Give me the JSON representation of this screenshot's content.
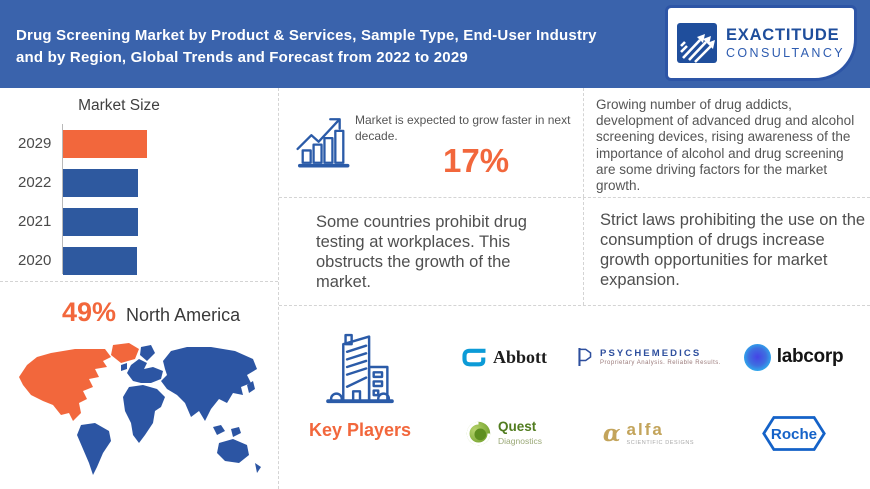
{
  "header": {
    "title_line1": "Drug Screening Market by Product & Services, Sample Type, End-User Industry",
    "title_line2": "and by Region, Global Trends and Forecast from 2022 to 2029",
    "logo": {
      "line1": "EXACTITUDE",
      "line2": "CONSULTANCY"
    }
  },
  "chart_data": {
    "type": "bar",
    "orientation": "horizontal",
    "title": "Market Size",
    "categories": [
      "2029",
      "2022",
      "2021",
      "2020"
    ],
    "values": [
      100,
      89,
      89,
      88
    ],
    "values_unit": "relative bar length (no numeric axis shown)",
    "bar_colors": [
      "#F2673C",
      "#2E599F",
      "#2E599F",
      "#2E599F"
    ],
    "highlight_category": "2029",
    "legend": "none",
    "grid": "off"
  },
  "region_share": {
    "percent": "49%",
    "label": "North America"
  },
  "growth": {
    "text": "Market is expected to grow faster in next decade.",
    "percent": "17%"
  },
  "sections": {
    "driver": "Growing number of drug addicts, development of advanced drug and alcohol screening devices, rising awareness of the importance of alcohol and drug screening are some driving factors for the market growth.",
    "restraint": "Some countries prohibit drug testing at workplaces. This obstructs the growth of the market.",
    "opportunity": "Strict laws prohibiting the use on the consumption of drugs increase growth opportunities for market expansion."
  },
  "key_players": {
    "label": "Key Players",
    "logos": {
      "abbott": {
        "text": "Abbott"
      },
      "psychemedics": {
        "text": "PSYCHEMEDICS",
        "tagline": "Proprietary Analysis. Reliable Results."
      },
      "labcorp": {
        "text": "labcorp"
      },
      "quest": {
        "text": "Quest",
        "sub": "Diagnostics"
      },
      "alfa": {
        "text": "alfa",
        "sub": "SCIENTIFIC DESIGNS"
      },
      "roche": {
        "text": "Roche"
      }
    }
  },
  "colors": {
    "header_blue": "#3A63AC",
    "bar_blue": "#2E599F",
    "accent_orange": "#F2673C",
    "icon_blue": "#2B5BA8",
    "map_blue": "#2C55A3",
    "map_orange": "#F2673C",
    "text_gray": "#58595B",
    "dash_gray": "#D4D4D4",
    "logo_navy": "#1F4E9C",
    "abbott_blue": "#0C9BD7",
    "quest_green": "#6F9E2A",
    "roche_blue": "#1462C8",
    "psychemedics_blue": "#2E4F9E",
    "alfa_gold": "#C3A45B",
    "labcorp_inner": "#4543E6",
    "labcorp_outer": "#5AD1F3"
  }
}
